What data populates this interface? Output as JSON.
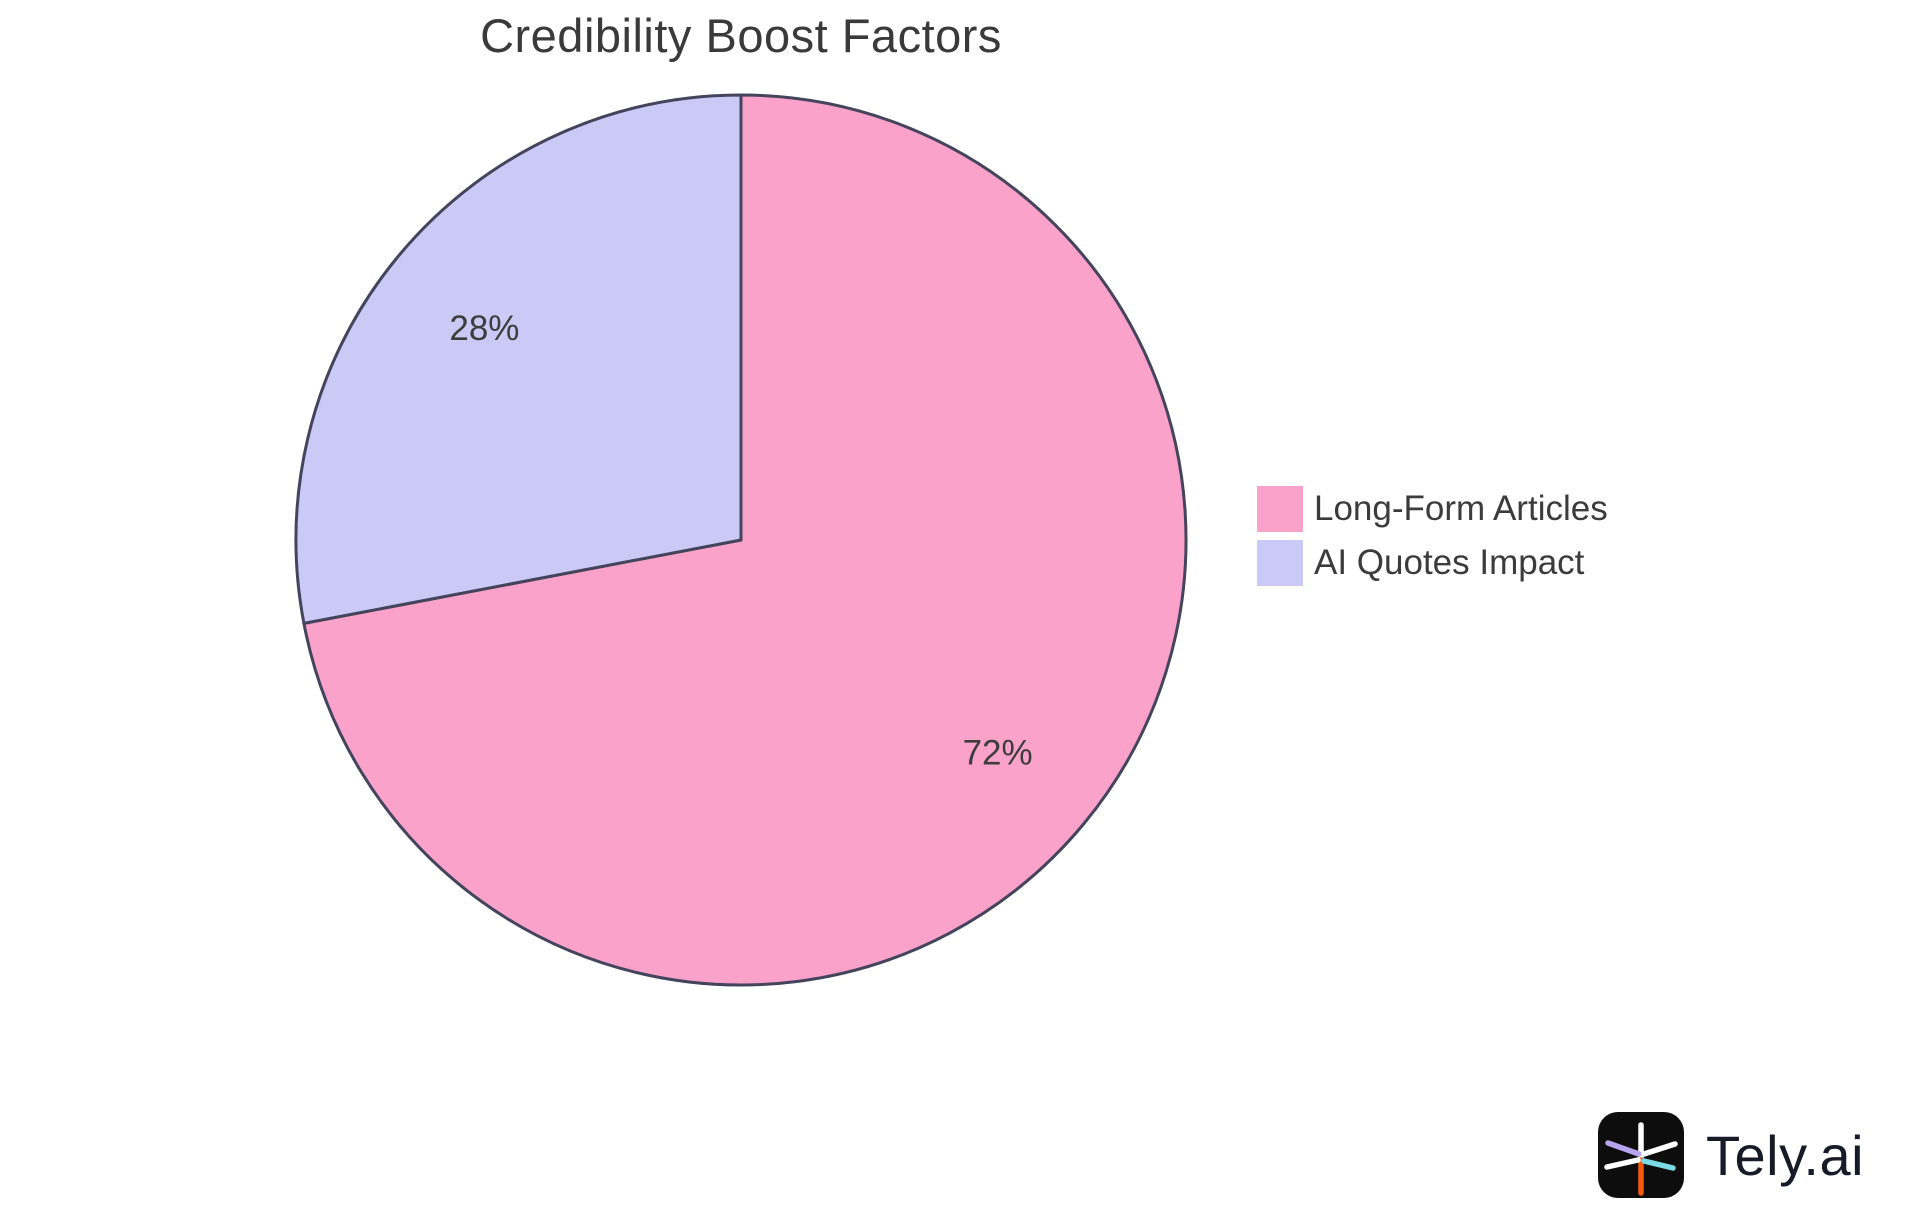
{
  "chart_data": {
    "type": "pie",
    "title": "Credibility Boost Factors",
    "labels": [
      "Long-Form Articles",
      "AI Quotes Impact"
    ],
    "values": [
      72,
      28
    ],
    "percent_labels": [
      "72%",
      "28%"
    ],
    "colors": [
      "#FBA2CB",
      "#CBC9F6"
    ],
    "slice_border_color": "#44445C",
    "slice_border_width": 3,
    "start_angle_deg": 0,
    "direction": "clockwise",
    "label_position": "inside",
    "legend_position": "right"
  },
  "legend": {
    "items": [
      {
        "label": "Long-Form Articles",
        "color": "#FBA2CB"
      },
      {
        "label": "AI Quotes Impact",
        "color": "#CBC9F6"
      }
    ]
  },
  "watermark": {
    "brand": "Tely.ai",
    "icon": "tely-asterisk-icon"
  },
  "style": {
    "background": "#FFFFFF",
    "title_color": "#3A3A3A",
    "slice_label_color": "#3D3D3D",
    "legend_text_color": "#3B3B3B",
    "brand_text_color": "#171A27",
    "icon_background": "#0D0D0D",
    "icon_spoke_white": "#FFFFFF",
    "icon_spoke_orange": "#F4590D",
    "icon_spoke_purple": "#B7A4EE",
    "icon_spoke_cyan": "#7BDAE6"
  }
}
